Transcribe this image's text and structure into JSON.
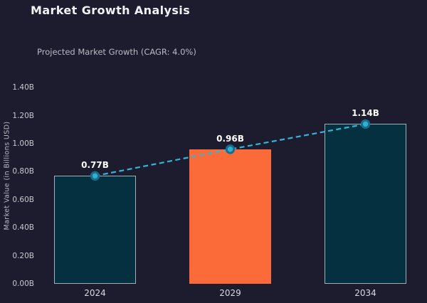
{
  "header": {
    "title": "Market Growth Analysis",
    "subtitle": "Projected Market Growth (CAGR: 4.0%)"
  },
  "chart_data": {
    "type": "bar",
    "title": "Market Growth Analysis",
    "subtitle": "Projected Market Growth (CAGR: 4.0%)",
    "categories": [
      "2024",
      "2029",
      "2034"
    ],
    "values": [
      0.77,
      0.96,
      1.14
    ],
    "value_labels": [
      "0.77B",
      "0.96B",
      "1.14B"
    ],
    "xlabel": "",
    "ylabel": "Market Value (in Billions USD)",
    "ylim": [
      0,
      1.4
    ],
    "ytick_values": [
      0.0,
      0.2,
      0.4,
      0.6,
      0.8,
      1.0,
      1.2,
      1.4
    ],
    "ytick_labels": [
      "0.00B",
      "0.20B",
      "0.40B",
      "0.60B",
      "0.80B",
      "1.00B",
      "1.20B",
      "1.40B"
    ],
    "grid": false,
    "legend": "none",
    "overlay": "dashed trend line with circular markers through bar tops",
    "highlight_index": 1,
    "colors": {
      "background": "#1d1b2e",
      "bar_default": "#05303f",
      "bar_highlight": "#fb6a39",
      "bar_border": "#9fb0b8",
      "trend_line": "#32b6d6",
      "marker_fill": "#2fb0d1",
      "marker_ring": "#1b6c8a",
      "title_text": "#f1f1f6",
      "subtitle_text": "#b9b8c3",
      "tick_text": "#c9c8d2",
      "data_label_text": "#ffffff"
    }
  }
}
